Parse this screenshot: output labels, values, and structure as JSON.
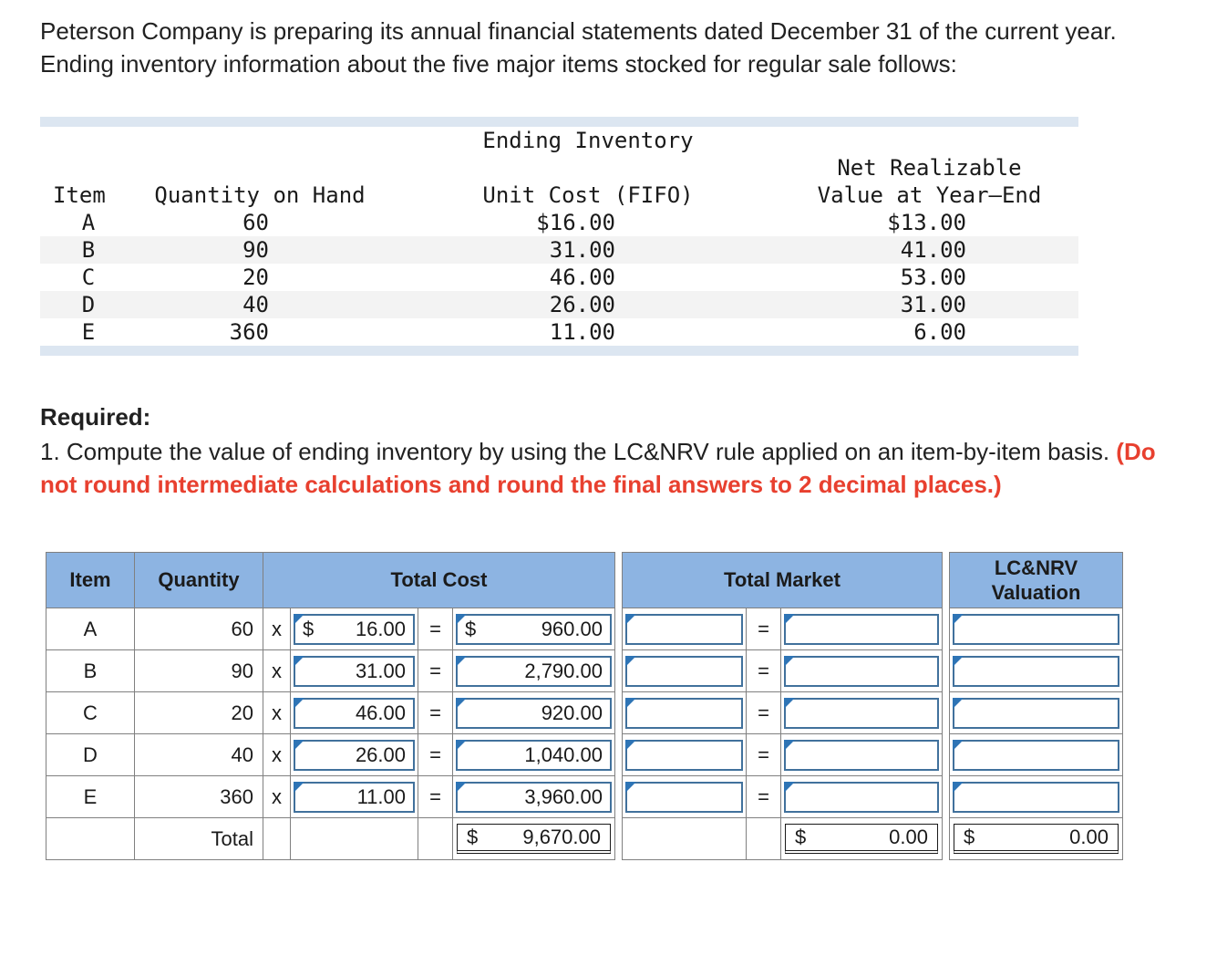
{
  "colors": {
    "header_blue": "#8db4e2",
    "input_border": "#41719c",
    "marker_blue": "#2e74b5",
    "accent_red": "#e8402f",
    "band_blue": "#dce6f1",
    "row_shade": "#f3f3f3",
    "grid_gray": "#808080"
  },
  "intro": "Peterson Company is preparing its annual financial statements dated December 31 of the current year. Ending inventory information about the five major items stocked for regular sale follows:",
  "inventory_table": {
    "group_header": "Ending Inventory",
    "nrv_header_line1": "Net Realizable",
    "col_item": "Item",
    "col_qty": "Quantity on Hand",
    "col_cost": "Unit Cost (FIFO)",
    "col_nrv": "Value at Year–End",
    "rows": [
      {
        "item": "A",
        "qty": "60",
        "cost": "$16.00",
        "nrv": "$13.00"
      },
      {
        "item": "B",
        "qty": "90",
        "cost": "31.00",
        "nrv": "41.00"
      },
      {
        "item": "C",
        "qty": "20",
        "cost": "46.00",
        "nrv": "53.00"
      },
      {
        "item": "D",
        "qty": "40",
        "cost": "26.00",
        "nrv": "31.00"
      },
      {
        "item": "E",
        "qty": "360",
        "cost": "11.00",
        "nrv": "6.00"
      }
    ]
  },
  "required": {
    "label": "Required:",
    "item_text": "1. Compute the value of ending inventory by using the LC&NRV rule applied on an item-by-item basis. ",
    "emphasis": "(Do not round intermediate calculations and round the final answers to 2 decimal places.)"
  },
  "answer_table": {
    "headers": {
      "item": "Item",
      "quantity": "Quantity",
      "total_cost": "Total Cost",
      "total_market": "Total Market",
      "lcnrv_line1": "LC&NRV",
      "lcnrv_line2": "Valuation"
    },
    "multiply_sign": "x",
    "equals_sign": "=",
    "rows": [
      {
        "item": "A",
        "qty": "60",
        "cost_currency": "$",
        "cost": "16.00",
        "ext_currency": "$",
        "ext": "960.00"
      },
      {
        "item": "B",
        "qty": "90",
        "cost_currency": "",
        "cost": "31.00",
        "ext_currency": "",
        "ext": "2,790.00"
      },
      {
        "item": "C",
        "qty": "20",
        "cost_currency": "",
        "cost": "46.00",
        "ext_currency": "",
        "ext": "920.00"
      },
      {
        "item": "D",
        "qty": "40",
        "cost_currency": "",
        "cost": "26.00",
        "ext_currency": "",
        "ext": "1,040.00"
      },
      {
        "item": "E",
        "qty": "360",
        "cost_currency": "",
        "cost": "11.00",
        "ext_currency": "",
        "ext": "3,960.00"
      }
    ],
    "total_row": {
      "label": "Total",
      "cost_total_currency": "$",
      "cost_total": "9,670.00",
      "market_total_currency": "$",
      "market_total": "0.00",
      "lcnrv_total_currency": "$",
      "lcnrv_total": "0.00"
    }
  }
}
